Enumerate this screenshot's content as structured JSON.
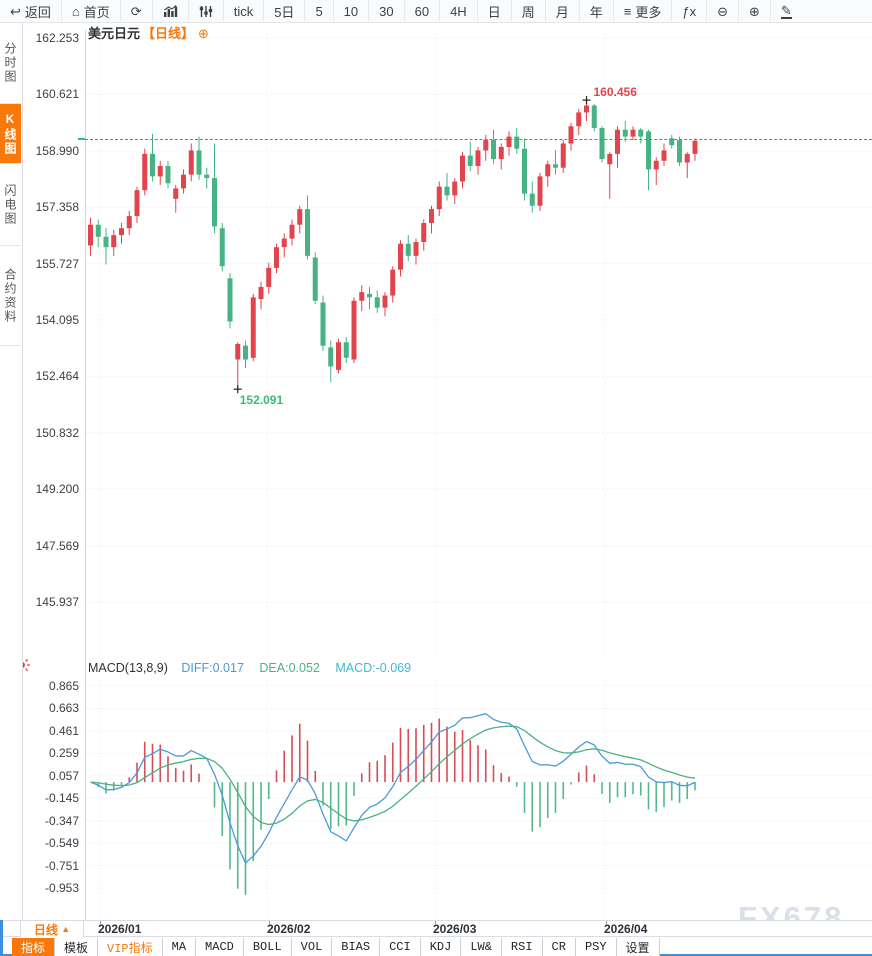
{
  "window": {
    "watermark": "FX678"
  },
  "icons": {
    "back-arrow": "↩",
    "home": "⌂",
    "refresh": "⟳",
    "menu": "≡",
    "zoom-out": "⊖",
    "zoom-in": "⊕",
    "pen": "✎",
    "add": "⊕",
    "arrow-up": "▲"
  },
  "toolbar": {
    "items": [
      {
        "name": "back",
        "icon": "back-arrow",
        "label": "返回"
      },
      {
        "name": "home",
        "icon": "home",
        "label": "首页"
      },
      {
        "name": "refresh",
        "icon": "refresh",
        "label": ""
      },
      {
        "name": "chart-type",
        "icon": "bar-chart",
        "label": ""
      },
      {
        "name": "indicator-settings",
        "icon": "sliders",
        "label": ""
      },
      {
        "name": "period-tick",
        "label": "tick"
      },
      {
        "name": "period-5d",
        "label": "5日"
      },
      {
        "name": "period-5",
        "label": "5"
      },
      {
        "name": "period-10",
        "label": "10"
      },
      {
        "name": "period-30",
        "label": "30"
      },
      {
        "name": "period-60",
        "label": "60"
      },
      {
        "name": "period-4h",
        "label": "4H"
      },
      {
        "name": "period-day",
        "label": "日"
      },
      {
        "name": "period-week",
        "label": "周"
      },
      {
        "name": "period-month",
        "label": "月"
      },
      {
        "name": "period-year",
        "label": "年"
      },
      {
        "name": "more",
        "icon": "menu",
        "label": "更多"
      },
      {
        "name": "formula",
        "label": "ƒx"
      },
      {
        "name": "zoom-out",
        "icon": "zoom-out",
        "label": ""
      },
      {
        "name": "zoom-in",
        "icon": "zoom-in",
        "label": ""
      },
      {
        "name": "draw",
        "icon": "pen",
        "label": ""
      }
    ]
  },
  "sidebar": {
    "items": [
      {
        "label": "分时图",
        "active": false
      },
      {
        "label": "K线图",
        "active": true
      },
      {
        "label": "闪电图",
        "active": false
      },
      {
        "label": "合约资料",
        "active": false
      }
    ]
  },
  "chart": {
    "title": "美元日元",
    "subtitle": "【日线】"
  },
  "macd_header": {
    "name": "MACD(13,8,9)",
    "diff": "DIFF:0.017",
    "dea": "DEA:0.052",
    "macd": "MACD:-0.069"
  },
  "bottom": {
    "period": "日线",
    "tabs": [
      {
        "label": "指标",
        "active": true
      },
      {
        "label": "模板"
      },
      {
        "label": "VIP指标",
        "vip": true
      },
      {
        "label": "MA"
      },
      {
        "label": "MACD"
      },
      {
        "label": "BOLL"
      },
      {
        "label": "VOL"
      },
      {
        "label": "BIAS"
      },
      {
        "label": "CCI"
      },
      {
        "label": "KDJ"
      },
      {
        "label": "LW&"
      },
      {
        "label": "RSI"
      },
      {
        "label": "CR"
      },
      {
        "label": "PSY"
      },
      {
        "label": "设置"
      }
    ]
  },
  "xaxis": {
    "labels": [
      "2026/01",
      "2026/02",
      "2026/03",
      "2026/04"
    ]
  },
  "chart_data": {
    "type": "candlestick",
    "symbol": "美元日元",
    "period": "日线",
    "price_axis_ticks": [
      162.253,
      160.621,
      158.99,
      157.358,
      155.727,
      154.095,
      152.464,
      150.832,
      149.2,
      147.569,
      145.937
    ],
    "macd_axis_ticks": [
      0.865,
      0.663,
      0.461,
      0.259,
      0.057,
      -0.145,
      -0.347,
      -0.549,
      -0.751,
      -0.953
    ],
    "high_annotation": {
      "value": 160.456,
      "candle_index": 64
    },
    "low_annotation": {
      "value": 152.091,
      "candle_index": 19
    },
    "last_price_line": 159.33,
    "up_color": "#e2444e",
    "down_color": "#47b282",
    "macd": {
      "params": [
        13,
        8,
        9
      ],
      "diff": 0.017,
      "dea": 0.052,
      "macd": -0.069,
      "diff_color": "#4a9ad8",
      "dea_color": "#4db183",
      "diff_text_color": "#4a9ad8",
      "dea_text_color": "#4db183",
      "macd_text_color": "#3fb8d8"
    },
    "candles": [
      [
        156.25,
        157.05,
        155.95,
        156.85
      ],
      [
        156.85,
        157.0,
        156.2,
        156.5
      ],
      [
        156.5,
        156.75,
        155.7,
        156.2
      ],
      [
        156.2,
        156.7,
        155.95,
        156.55
      ],
      [
        156.55,
        156.9,
        156.3,
        156.75
      ],
      [
        156.75,
        157.25,
        156.55,
        157.1
      ],
      [
        157.1,
        157.95,
        156.9,
        157.85
      ],
      [
        157.85,
        159.05,
        157.7,
        158.9
      ],
      [
        158.9,
        159.48,
        158.1,
        158.25
      ],
      [
        158.25,
        158.7,
        158.0,
        158.55
      ],
      [
        158.55,
        158.7,
        157.9,
        158.05
      ],
      [
        157.6,
        158.0,
        157.2,
        157.9
      ],
      [
        157.9,
        158.45,
        157.75,
        158.3
      ],
      [
        158.3,
        159.2,
        158.1,
        159.0
      ],
      [
        159.0,
        159.4,
        158.15,
        158.3
      ],
      [
        158.3,
        158.5,
        157.9,
        158.2
      ],
      [
        158.2,
        159.2,
        156.6,
        156.8
      ],
      [
        156.75,
        156.9,
        155.5,
        155.65
      ],
      [
        155.3,
        155.45,
        153.85,
        154.05
      ],
      [
        152.95,
        153.45,
        152.091,
        153.4
      ],
      [
        153.35,
        153.5,
        152.7,
        152.95
      ],
      [
        153.0,
        154.85,
        152.9,
        154.75
      ],
      [
        154.7,
        155.2,
        154.4,
        155.05
      ],
      [
        155.05,
        155.75,
        154.85,
        155.6
      ],
      [
        155.6,
        156.3,
        155.45,
        156.2
      ],
      [
        156.2,
        156.6,
        155.9,
        156.45
      ],
      [
        156.45,
        157.0,
        156.25,
        156.85
      ],
      [
        156.85,
        157.4,
        156.6,
        157.3
      ],
      [
        157.3,
        157.7,
        155.85,
        155.95
      ],
      [
        155.9,
        156.05,
        154.55,
        154.65
      ],
      [
        154.6,
        154.8,
        153.2,
        153.35
      ],
      [
        153.3,
        153.5,
        152.3,
        152.75
      ],
      [
        152.65,
        153.55,
        152.55,
        153.45
      ],
      [
        153.45,
        153.6,
        152.85,
        153.0
      ],
      [
        152.95,
        154.75,
        152.85,
        154.65
      ],
      [
        154.65,
        155.1,
        154.35,
        154.9
      ],
      [
        154.85,
        155.05,
        154.4,
        154.75
      ],
      [
        154.75,
        154.95,
        154.3,
        154.45
      ],
      [
        154.45,
        154.9,
        154.2,
        154.8
      ],
      [
        154.8,
        155.65,
        154.6,
        155.55
      ],
      [
        155.55,
        156.4,
        155.35,
        156.3
      ],
      [
        156.3,
        156.55,
        155.8,
        155.95
      ],
      [
        155.95,
        156.45,
        155.7,
        156.35
      ],
      [
        156.35,
        157.0,
        156.1,
        156.9
      ],
      [
        156.9,
        157.4,
        156.6,
        157.3
      ],
      [
        157.3,
        158.1,
        157.1,
        157.95
      ],
      [
        157.95,
        158.35,
        157.55,
        157.7
      ],
      [
        157.7,
        158.2,
        157.45,
        158.1
      ],
      [
        158.1,
        158.95,
        157.9,
        158.85
      ],
      [
        158.85,
        159.25,
        158.4,
        158.55
      ],
      [
        158.55,
        159.1,
        158.3,
        159.0
      ],
      [
        159.0,
        159.45,
        158.7,
        159.3
      ],
      [
        159.3,
        159.6,
        158.6,
        158.75
      ],
      [
        158.75,
        159.2,
        158.45,
        159.1
      ],
      [
        159.1,
        159.55,
        158.85,
        159.4
      ],
      [
        159.4,
        159.65,
        158.9,
        159.05
      ],
      [
        159.05,
        159.35,
        157.55,
        157.75
      ],
      [
        157.75,
        158.1,
        157.2,
        157.4
      ],
      [
        157.4,
        158.35,
        157.25,
        158.25
      ],
      [
        158.25,
        158.7,
        157.95,
        158.6
      ],
      [
        158.6,
        159.0,
        158.3,
        158.5
      ],
      [
        158.5,
        159.3,
        158.35,
        159.2
      ],
      [
        159.2,
        159.8,
        159.0,
        159.7
      ],
      [
        159.7,
        160.2,
        159.45,
        160.1
      ],
      [
        160.1,
        160.456,
        159.85,
        160.3
      ],
      [
        160.3,
        160.35,
        159.55,
        159.65
      ],
      [
        159.65,
        159.7,
        158.65,
        158.75
      ],
      [
        158.6,
        158.95,
        157.6,
        158.9
      ],
      [
        158.9,
        159.7,
        158.5,
        159.6
      ],
      [
        159.6,
        159.85,
        159.25,
        159.4
      ],
      [
        159.4,
        159.7,
        159.3,
        159.6
      ],
      [
        159.6,
        159.65,
        159.2,
        159.4
      ],
      [
        159.55,
        159.6,
        157.85,
        158.45
      ],
      [
        158.45,
        158.8,
        158.0,
        158.7
      ],
      [
        158.7,
        159.2,
        158.55,
        159.0
      ],
      [
        159.35,
        159.45,
        159.05,
        159.15
      ],
      [
        159.3,
        159.4,
        158.55,
        158.65
      ],
      [
        158.65,
        158.95,
        158.2,
        158.9
      ],
      [
        158.9,
        159.35,
        158.7,
        159.28
      ]
    ]
  }
}
